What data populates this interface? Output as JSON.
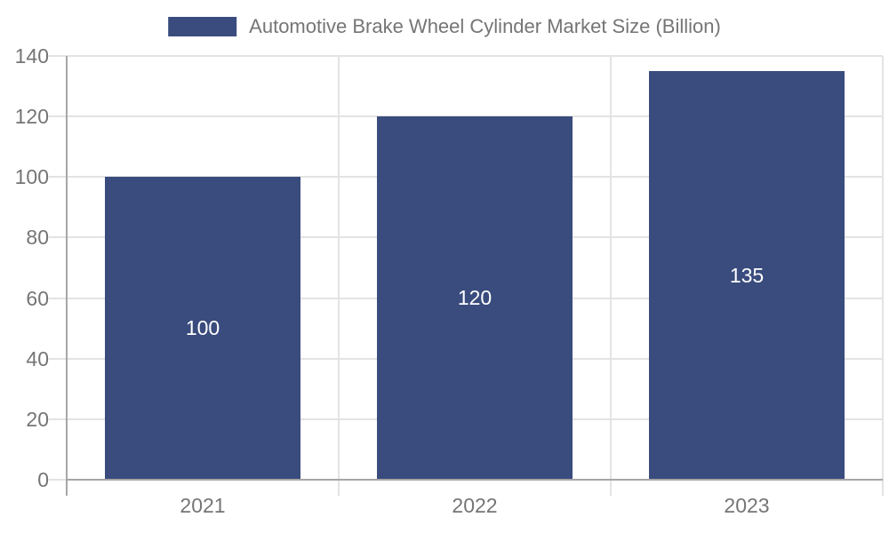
{
  "legend": {
    "label": "Automotive Brake Wheel Cylinder Market Size (Billion)"
  },
  "chart_data": {
    "type": "bar",
    "title": "Automotive Brake Wheel Cylinder Market Size (Billion)",
    "categories": [
      "2021",
      "2022",
      "2023"
    ],
    "values": [
      100,
      120,
      135
    ],
    "bar_value_labels": [
      "100",
      "120",
      "135"
    ],
    "xlabel": "",
    "ylabel": "",
    "ylim": [
      0,
      140
    ],
    "yticks": [
      0,
      20,
      40,
      60,
      80,
      100,
      120,
      140
    ],
    "grid": "on",
    "legend_position": "top-center"
  },
  "colors": {
    "bar": "#3a4c7e",
    "gridline": "#e3e3e3",
    "axis": "#a6a6a6",
    "tick_text": "#757575",
    "bar_label_text": "#ffffff",
    "background": "#ffffff"
  }
}
